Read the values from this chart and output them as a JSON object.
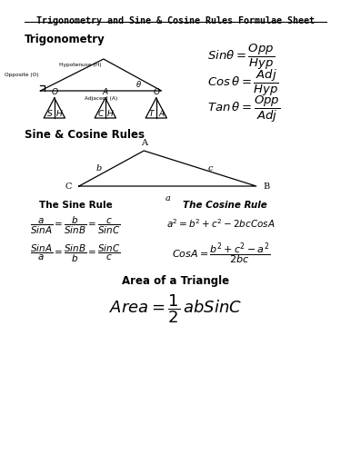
{
  "title": "Trigonometry and Sine & Cosine Rules Formulae Sheet",
  "bg_color": "#ffffff",
  "text_color": "#000000",
  "fig_width": 3.86,
  "fig_height": 5.0,
  "dpi": 100,
  "trig_heading": "Trigonometry",
  "sine_cosine_heading": "Sine & Cosine Rules",
  "sine_rule_heading": "The Sine Rule",
  "cosine_rule_heading": "The Cosine Rule",
  "area_heading": "Area of a Triangle",
  "hyp_label": "Hypotenuse (H)",
  "opp_label": "Opposite (O)",
  "adj_label": "Adjacent (A)"
}
